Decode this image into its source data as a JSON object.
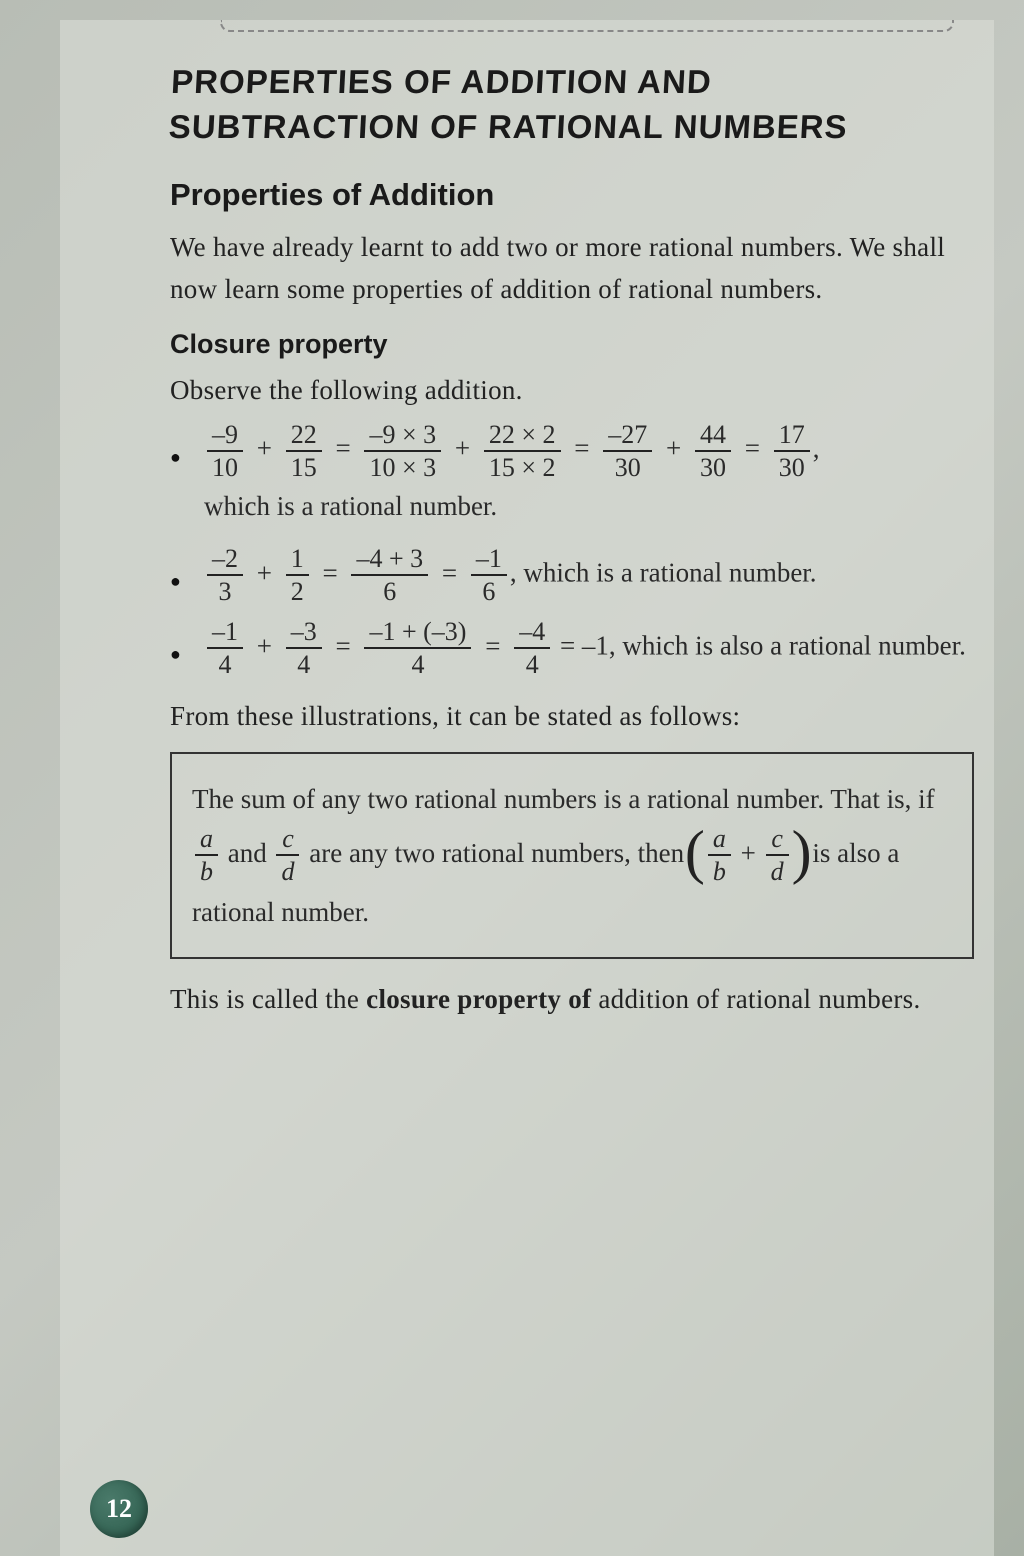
{
  "heading_main_line1": "PROPERTIES OF ADDITION AND",
  "heading_main_line2": "SUBTRACTION OF RATIONAL NUMBERS",
  "heading_sub1": "Properties of Addition",
  "intro_para": "We have already learnt to add two or more rational numbers. We shall now learn some properties of addition of rational numbers.",
  "heading_sub2": "Closure property",
  "observe_text": "Observe the following addition.",
  "ex1": {
    "f1n": "–9",
    "f1d": "10",
    "f2n": "22",
    "f2d": "15",
    "f3n": "–9 × 3",
    "f3d": "10 × 3",
    "f4n": "22 × 2",
    "f4d": "15 × 2",
    "f5n": "–27",
    "f5d": "30",
    "f6n": "44",
    "f6d": "30",
    "f7n": "17",
    "f7d": "30",
    "note": "which is a rational number."
  },
  "ex2": {
    "f1n": "–2",
    "f1d": "3",
    "f2n": "1",
    "f2d": "2",
    "f3n": "–4 + 3",
    "f3d": "6",
    "f4n": "–1",
    "f4d": "6",
    "note": ", which is a rational number."
  },
  "ex3": {
    "f1n": "–1",
    "f1d": "4",
    "f2n": "–3",
    "f2d": "4",
    "f3n": "–1 + (–3)",
    "f3d": "4",
    "f4n": "–4",
    "f4d": "4",
    "result": "= –1",
    "note": ", which is also a rational number."
  },
  "followup": "From these illustrations, it can be stated as follows:",
  "rule_part1": "The sum of any two rational numbers is a rational number. That is, if ",
  "rule_a": "a",
  "rule_b": "b",
  "rule_c": "c",
  "rule_d": "d",
  "rule_and": " and ",
  "rule_part2": " are any two rational numbers, then ",
  "rule_part3": " is also a rational number.",
  "closing_pre": "This is called the ",
  "closing_bold": "closure property of",
  "closing_post": " addition of rational numbers.",
  "page_number": "12"
}
